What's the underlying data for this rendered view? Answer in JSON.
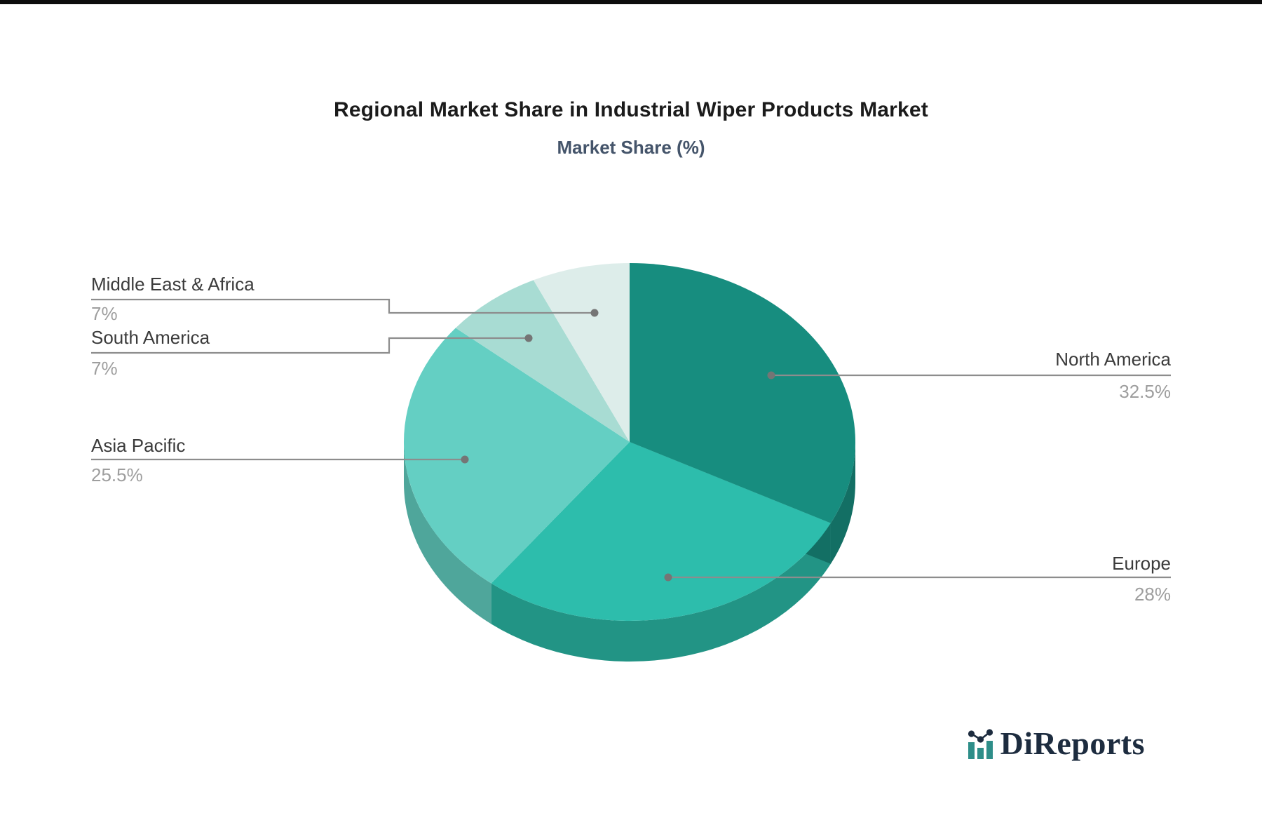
{
  "title": "Regional Market Share in Industrial Wiper Products Market",
  "subtitle": "Market Share (%)",
  "chart_data": {
    "type": "pie",
    "title": "Regional Market Share in Industrial Wiper Products Market",
    "subtitle": "Market Share (%)",
    "unit": "%",
    "effect": "3d",
    "start": "12-oclock-clockwise",
    "legend": "none",
    "labels": "leader-line-callouts",
    "slices": [
      {
        "label": "North America",
        "value": 32.5,
        "display": "32.5%",
        "color": "#178d7f",
        "side_color": "#136f64"
      },
      {
        "label": "Europe",
        "value": 28,
        "display": "28%",
        "color": "#2dbdac",
        "side_color": "#229485"
      },
      {
        "label": "Asia Pacific",
        "value": 25.5,
        "display": "25.5%",
        "color": "#64cfc3",
        "side_color": "#4fa69b"
      },
      {
        "label": "South America",
        "value": 7,
        "display": "7%",
        "color": "#a8dcd3",
        "side_color": "#8fc5bc"
      },
      {
        "label": "Middle East & Africa",
        "value": 7,
        "display": "7%",
        "color": "#ddedea",
        "side_color": "#c2d8d4"
      }
    ],
    "style": {
      "label_color": "#3b3b3b",
      "value_color": "#9e9e9e",
      "leader_line_color": "#8d8d8d",
      "leader_dot_color": "#757575",
      "background": "#ffffff"
    }
  },
  "logo": {
    "text": "DiReports",
    "icon": "bar-line-chart-icon",
    "text_color": "#1d2c3f",
    "icon_color": "#2e8e89"
  }
}
